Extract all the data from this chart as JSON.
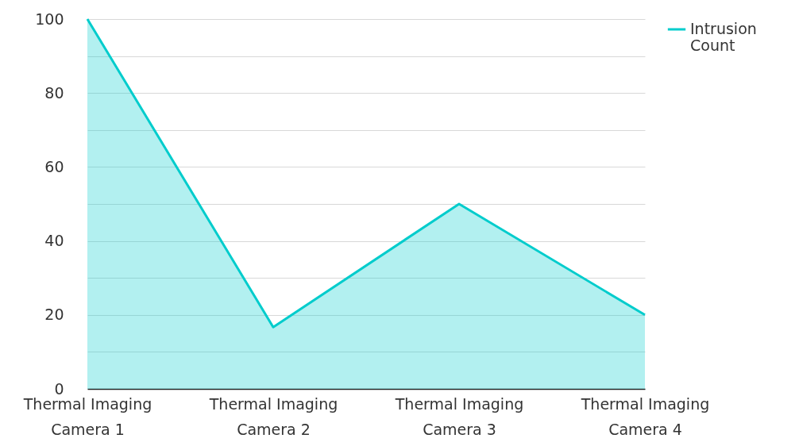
{
  "chart_data": {
    "type": "area",
    "categories": [
      "Thermal Imaging Camera 1",
      "Thermal Imaging Camera 2",
      "Thermal Imaging Camera 3",
      "Thermal Imaging Camera 4"
    ],
    "series": [
      {
        "name": "Intrusion Count",
        "color": "#00cccc",
        "values": [
          100,
          16.7,
          50,
          20
        ]
      }
    ],
    "ylim": [
      0,
      100
    ],
    "yticks": [
      0,
      {
        "value": 10,
        "label": null
      },
      20,
      {
        "value": 30,
        "label": null
      },
      40,
      {
        "value": 50,
        "label": null
      },
      60,
      {
        "value": 70,
        "label": null
      },
      80,
      {
        "value": 90,
        "label": null
      },
      100
    ],
    "grid": "y",
    "legend": "top right"
  }
}
